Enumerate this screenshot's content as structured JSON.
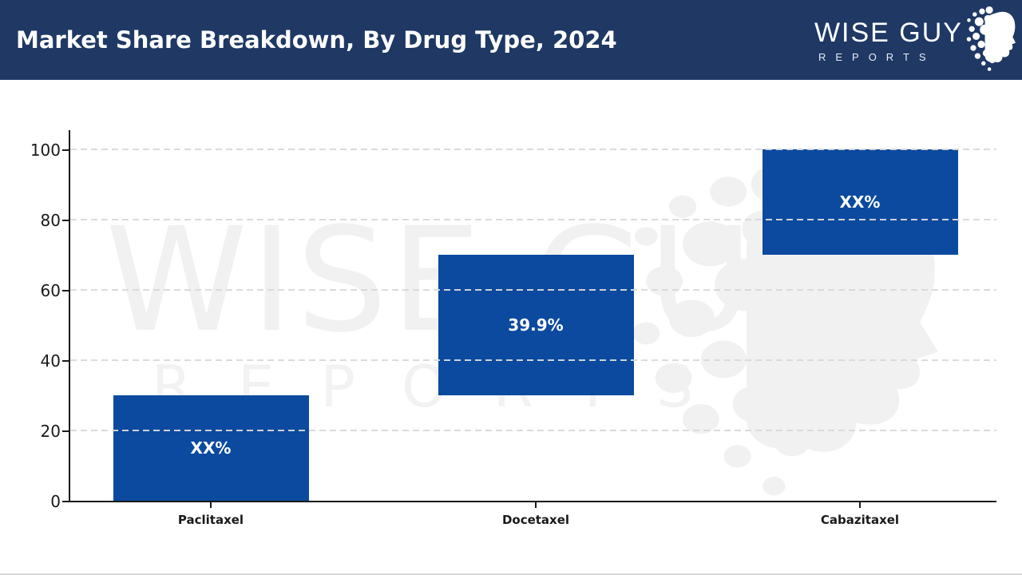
{
  "header": {
    "title": "Market Share Breakdown, By Drug Type, 2024",
    "bg_color": "#1f3864",
    "logo": {
      "line1": "WISE GUY",
      "line2": "REPORTS"
    }
  },
  "watermark": {
    "line1": "WISE GUY",
    "line2": "REPORTS"
  },
  "chart_data": {
    "type": "bar",
    "subtype": "floating-stacked-percentage-bars",
    "title": "Market Share Breakdown, By Drug Type, 2024",
    "categories": [
      "Paclitaxel",
      "Docetaxel",
      "Cabazitaxel"
    ],
    "bars": [
      {
        "category": "Paclitaxel",
        "start": 0,
        "end": 30,
        "label": "XX%"
      },
      {
        "category": "Docetaxel",
        "start": 30,
        "end": 69.9,
        "label": "39.9%"
      },
      {
        "category": "Cabazitaxel",
        "start": 69.9,
        "end": 100,
        "label": "XX%"
      }
    ],
    "ylim": [
      0,
      100
    ],
    "y_ticks": [
      0,
      20,
      40,
      60,
      80,
      100
    ],
    "grid": "horizontal-dashed",
    "legend": "none",
    "bar_color": "#0b4a9f",
    "value_label_color": "#ffffff",
    "axis_color": "#1a1a1a",
    "grid_color": "#d9d9d9",
    "background_color": "#ffffff"
  }
}
